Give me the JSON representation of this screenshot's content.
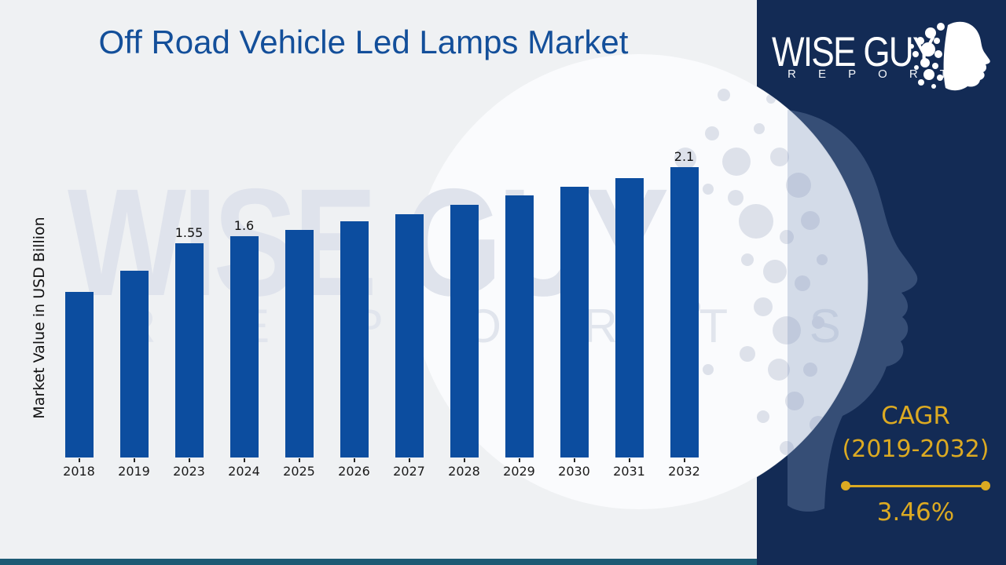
{
  "page_title": "Off Road Vehicle Led Lamps Market",
  "watermark": {
    "line1": "WISE GUY",
    "line2": "R E P O R T S"
  },
  "brand": {
    "name_line": "WISE GUY",
    "reports_line": "R E P O R T S",
    "face_icon": "dotted-face-profile"
  },
  "cagr": {
    "heading": "CAGR",
    "range": "(2019-2032)",
    "value": "3.46%"
  },
  "chart_data": {
    "type": "bar",
    "title": "Off Road Vehicle Led Lamps Market",
    "xlabel": "",
    "ylabel": "Market Value in USD Billion",
    "categories": [
      "2018",
      "2019",
      "2023",
      "2024",
      "2025",
      "2026",
      "2027",
      "2028",
      "2029",
      "2030",
      "2031",
      "2032"
    ],
    "values": [
      1.2,
      1.35,
      1.55,
      1.6,
      1.65,
      1.71,
      1.76,
      1.83,
      1.9,
      1.96,
      2.02,
      2.1
    ],
    "bar_labels": [
      "",
      "",
      "1.55",
      "1.6",
      "",
      "",
      "",
      "",
      "",
      "",
      "",
      "2.1"
    ],
    "ylim": [
      0,
      2.4
    ],
    "grid": false,
    "legend": null,
    "bar_color": "#0c4d9f"
  },
  "colors": {
    "background": "#eff1f3",
    "panel_navy": "#132b55",
    "bar_blue": "#0c4d9f",
    "accent_gold": "#dcaa22",
    "footer_teal": "#1d5a74",
    "title_blue": "#134f9a",
    "watermark_gray": "#dfe3ec"
  }
}
